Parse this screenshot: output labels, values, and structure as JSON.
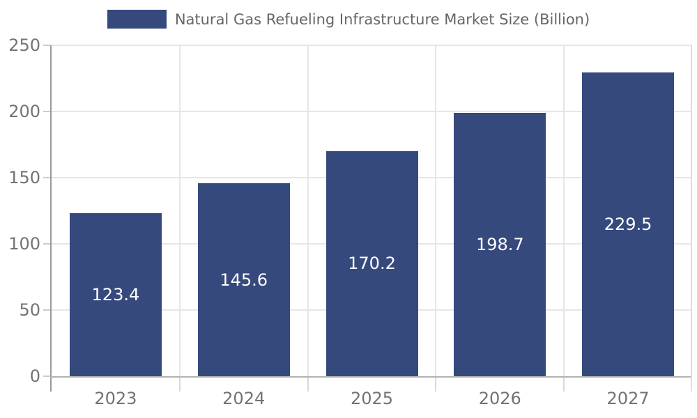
{
  "chart_data": {
    "type": "bar",
    "title": "Natural Gas Refueling Infrastructure Market Size (Billion)",
    "categories": [
      "2023",
      "2024",
      "2025",
      "2026",
      "2027"
    ],
    "values": [
      123.4,
      145.6,
      170.2,
      198.7,
      229.5
    ],
    "value_labels": [
      "123.4",
      "145.6",
      "170.2",
      "198.7",
      "229.5"
    ],
    "xlabel": "",
    "ylabel": "",
    "ylim": [
      0,
      250
    ],
    "yticks": [
      0,
      50,
      100,
      150,
      200,
      250
    ],
    "ytick_labels": [
      "0",
      "50",
      "100",
      "150",
      "200",
      "250"
    ],
    "grid": "on",
    "legend_position": "top-center",
    "colors": {
      "bar": "#36497D",
      "legend_swatch": "#36497D",
      "title_text": "#666666",
      "tick_label_text": "#737373",
      "value_label_text": "#ffffff",
      "gridline": "#e6e6e6",
      "axis_left": "#9a9a9a",
      "axis_bottom": "#b3b3b3",
      "axis_right": "#dcdcdc",
      "y_tick_mark": "#cccccc",
      "below_axis_tick": "#d9d9d9",
      "background": "#ffffff"
    }
  }
}
